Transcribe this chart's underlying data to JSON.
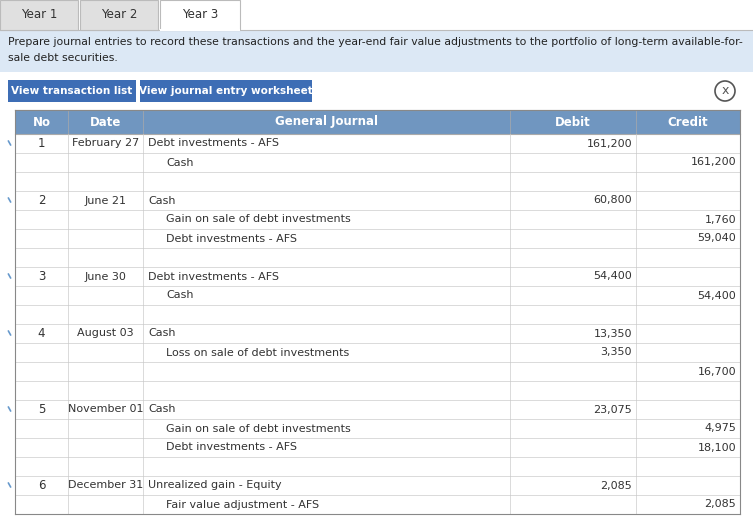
{
  "tabs": [
    "Year 1",
    "Year 2",
    "Year 3"
  ],
  "active_tab": 2,
  "description_line1": "Prepare journal entries to record these transactions and the year-end fair value adjustments to the portfolio of long-term available-for-",
  "description_line2": "sale debt securities.",
  "buttons": [
    "View transaction list",
    "View journal entry worksheet"
  ],
  "col_headers": [
    "No",
    "Date",
    "General Journal",
    "Debit",
    "Credit"
  ],
  "header_bg": "#7096c0",
  "header_text": "#ffffff",
  "tab_bg_active": "#ffffff",
  "tab_bg_inactive": "#e0e0e0",
  "tab_border": "#bbbbbb",
  "desc_bg": "#dce8f5",
  "button_bg": "#3d6db5",
  "button_text": "#ffffff",
  "border_color": "#bbbbbb",
  "text_color": "#222222",
  "pencil_color": "#6699cc",
  "entries": [
    {
      "no": "1",
      "date": "February 27",
      "rows": [
        {
          "account": "Debt investments - AFS",
          "debit": "161,200",
          "credit": "",
          "indent": false
        },
        {
          "account": "Cash",
          "debit": "",
          "credit": "161,200",
          "indent": true
        },
        {
          "account": "",
          "debit": "",
          "credit": "",
          "indent": false
        }
      ]
    },
    {
      "no": "2",
      "date": "June 21",
      "rows": [
        {
          "account": "Cash",
          "debit": "60,800",
          "credit": "",
          "indent": false
        },
        {
          "account": "Gain on sale of debt investments",
          "debit": "",
          "credit": "1,760",
          "indent": true
        },
        {
          "account": "Debt investments - AFS",
          "debit": "",
          "credit": "59,040",
          "indent": true
        },
        {
          "account": "",
          "debit": "",
          "credit": "",
          "indent": false
        }
      ]
    },
    {
      "no": "3",
      "date": "June 30",
      "rows": [
        {
          "account": "Debt investments - AFS",
          "debit": "54,400",
          "credit": "",
          "indent": false
        },
        {
          "account": "Cash",
          "debit": "",
          "credit": "54,400",
          "indent": true
        },
        {
          "account": "",
          "debit": "",
          "credit": "",
          "indent": false
        }
      ]
    },
    {
      "no": "4",
      "date": "August 03",
      "rows": [
        {
          "account": "Cash",
          "debit": "13,350",
          "credit": "",
          "indent": false
        },
        {
          "account": "Loss on sale of debt investments",
          "debit": "3,350",
          "credit": "",
          "indent": true
        },
        {
          "account": "",
          "debit": "",
          "credit": "16,700",
          "indent": false
        },
        {
          "account": "",
          "debit": "",
          "credit": "",
          "indent": false
        }
      ]
    },
    {
      "no": "5",
      "date": "November 01",
      "rows": [
        {
          "account": "Cash",
          "debit": "23,075",
          "credit": "",
          "indent": false
        },
        {
          "account": "Gain on sale of debt investments",
          "debit": "",
          "credit": "4,975",
          "indent": true
        },
        {
          "account": "Debt investments - AFS",
          "debit": "",
          "credit": "18,100",
          "indent": true
        },
        {
          "account": "",
          "debit": "",
          "credit": "",
          "indent": false
        }
      ]
    },
    {
      "no": "6",
      "date": "December 31",
      "rows": [
        {
          "account": "Unrealized gain - Equity",
          "debit": "2,085",
          "credit": "",
          "indent": false
        },
        {
          "account": "Fair value adjustment - AFS",
          "debit": "",
          "credit": "2,085",
          "indent": true
        }
      ]
    }
  ]
}
